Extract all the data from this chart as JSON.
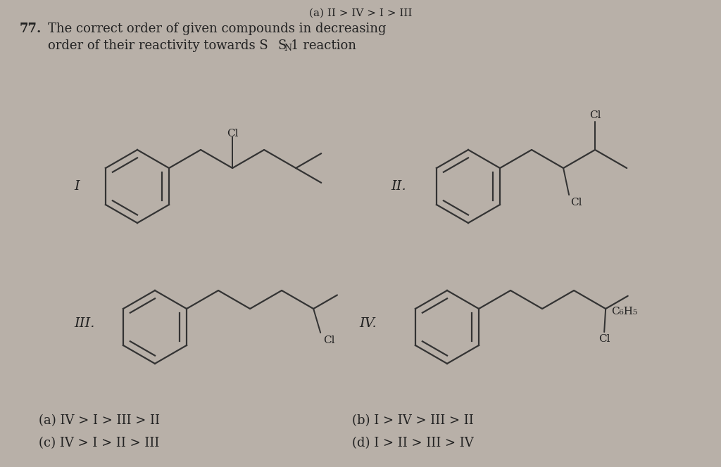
{
  "background_color": "#b8b0a8",
  "title_top": "(a) II > IV > I > III",
  "question_number": "77.",
  "question_line1": "The correct order of given compounds in decreasing",
  "question_line2": "order of their reactivity towards S",
  "question_subscript": "N",
  "question_end": "1 reaction",
  "options": [
    "(a) IV > I > III > II",
    "(b) I > IV > III > II",
    "(c) IV > I > II > III",
    "(d) I > II > III > IV"
  ],
  "text_color": "#222222",
  "line_color": "#333333",
  "font_size_title": 11,
  "font_size_q": 13,
  "font_size_label": 13,
  "font_size_cl": 11,
  "font_size_opts": 13,
  "lw": 1.6
}
